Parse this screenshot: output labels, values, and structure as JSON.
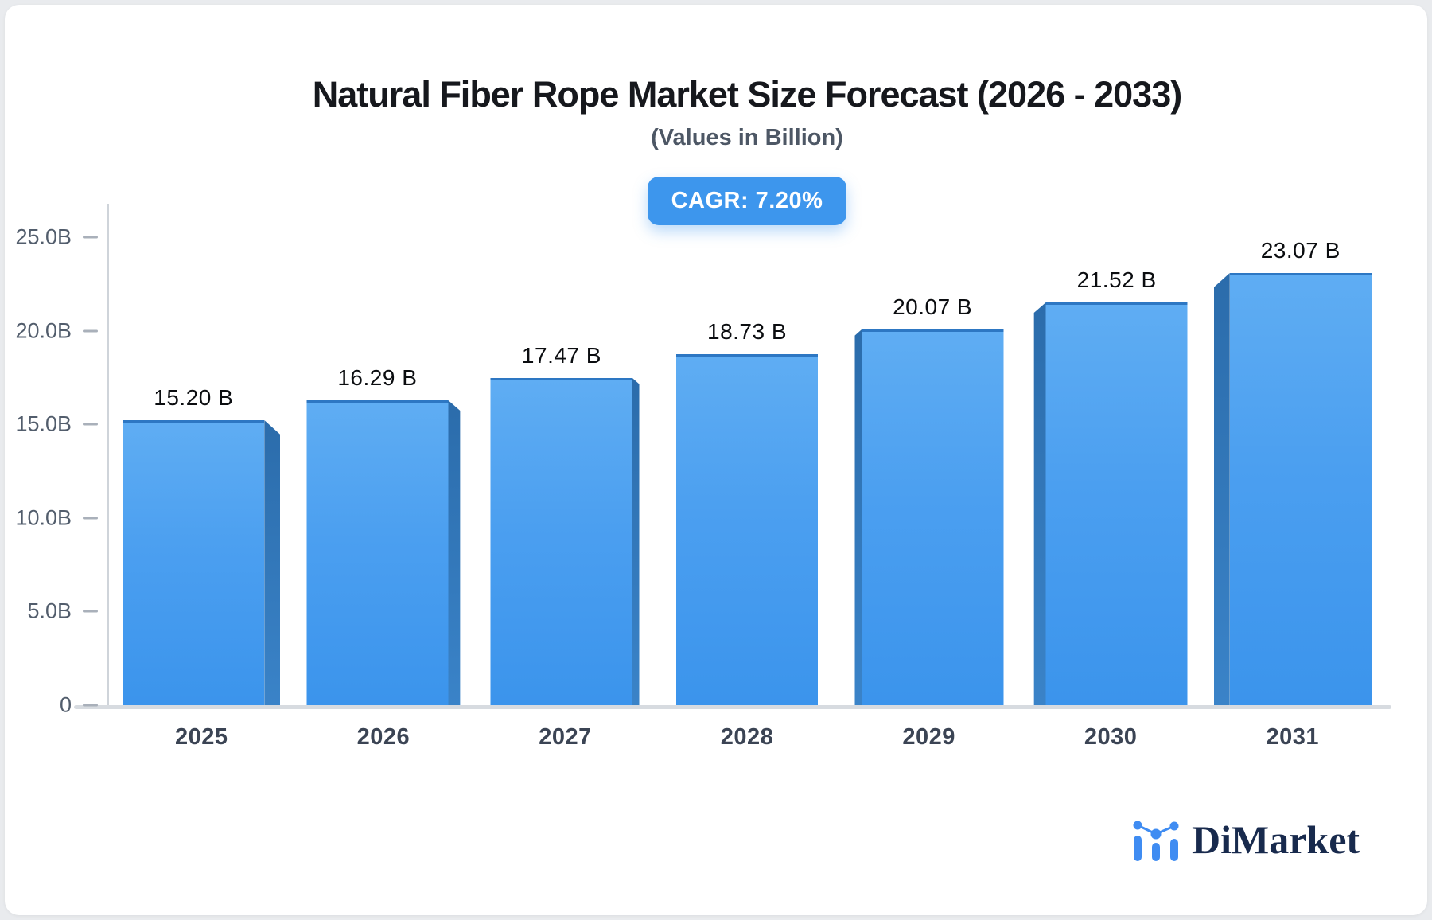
{
  "chart_data": {
    "type": "bar",
    "title": "Natural Fiber Rope Market Size Forecast (2026 - 2033)",
    "subtitle": "(Values in Billion)",
    "annotations": {
      "cagr_label": "CAGR: 7.20%"
    },
    "unit": "Billion",
    "categories": [
      "2025",
      "2026",
      "2027",
      "2028",
      "2029",
      "2030",
      "2031"
    ],
    "values": [
      15.2,
      16.29,
      17.47,
      18.73,
      20.07,
      21.52,
      23.07
    ],
    "value_labels": [
      "15.20 B",
      "16.29 B",
      "17.47 B",
      "18.73 B",
      "20.07 B",
      "21.52 B",
      "23.07 B"
    ],
    "y_axis": {
      "min": 0,
      "max": 25,
      "ticks": [
        {
          "label": "25.0B",
          "value": 25
        },
        {
          "label": "20.0B",
          "value": 20
        },
        {
          "label": "15.0B",
          "value": 15
        },
        {
          "label": "10.0B",
          "value": 10
        },
        {
          "label": "5.0B",
          "value": 5
        },
        {
          "label": "0",
          "value": 0
        }
      ]
    },
    "grid": false,
    "legend_position": "none",
    "bar_color_top": "#5fadf3",
    "bar_color_bottom": "#3b94ec",
    "bar_side_color": "#2d72b2",
    "badge_color": "#3d96ed"
  },
  "footer": {
    "logo_text": "DiMarket"
  },
  "icons": {
    "logo_icon": "mini-bar-chart-with-trend-dots"
  }
}
